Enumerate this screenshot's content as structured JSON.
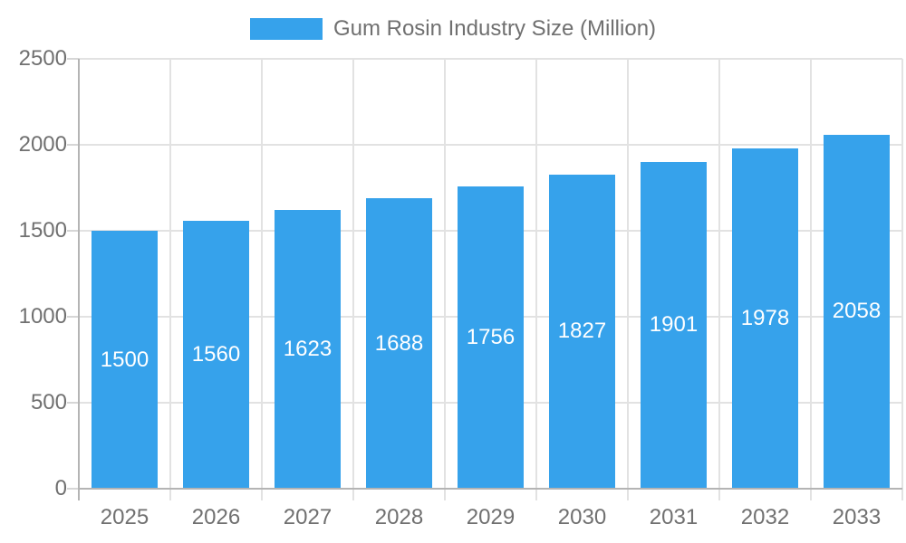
{
  "chart_data": {
    "type": "bar",
    "title": "",
    "legend_label": "Gum Rosin Industry Size (Million)",
    "legend_position": "top",
    "categories": [
      "2025",
      "2026",
      "2027",
      "2028",
      "2029",
      "2030",
      "2031",
      "2032",
      "2033"
    ],
    "values": [
      1500,
      1560,
      1623,
      1688,
      1756,
      1827,
      1901,
      1978,
      2058
    ],
    "xlabel": "",
    "ylabel": "",
    "ylim": [
      0,
      2500
    ],
    "yticks": [
      0,
      500,
      1000,
      1500,
      2000,
      2500
    ],
    "grid": true,
    "colors": {
      "bar": "#36A2EB",
      "bar_label": "#FFFFFF",
      "axis_text": "#707070",
      "gridline": "#E2E2E2",
      "tick": "#D6D6D6",
      "axis_line": "#B4B4B4",
      "background": "#FFFFFF"
    }
  }
}
